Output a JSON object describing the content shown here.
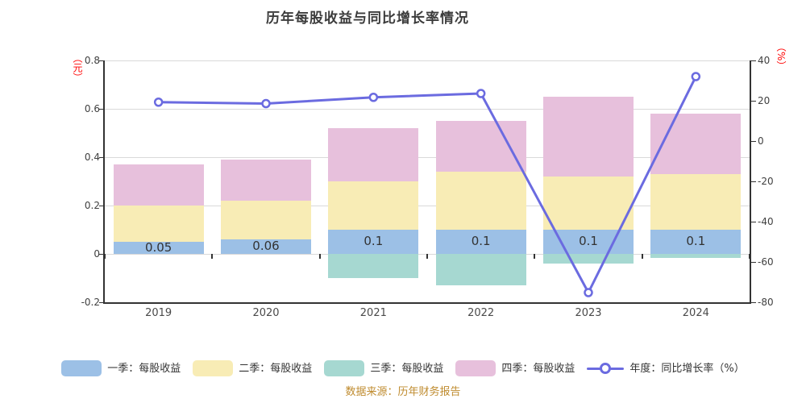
{
  "title": "历年每股收益与同比增长率情况",
  "axes": {
    "left_unit": "（元）",
    "right_unit": "（%）"
  },
  "source_note": "数据来源：历年财务报告",
  "colors": {
    "accent_line": "#6b6be0",
    "axis": "#333333",
    "grid": "#d9d9d9",
    "unit_label": "#ff0000",
    "source_text": "#bf8b2e"
  },
  "chart_data": {
    "type": "bar",
    "title": "历年每股收益与同比增长率情况",
    "categories": [
      "2019",
      "2020",
      "2021",
      "2022",
      "2023",
      "2024"
    ],
    "series": [
      {
        "name": "一季：每股收益",
        "type": "bar",
        "color": "#9cc0e6",
        "values": [
          0.05,
          0.06,
          0.1,
          0.1,
          0.1,
          0.1
        ],
        "labels": [
          "0.05",
          "0.06",
          "0.1",
          "0.1",
          "0.1",
          "0.1"
        ]
      },
      {
        "name": "二季：每股收益",
        "type": "bar",
        "color": "#f8ecb5",
        "values": [
          0.15,
          0.16,
          0.2,
          0.24,
          0.22,
          0.23
        ]
      },
      {
        "name": "三季：每股收益",
        "type": "bar",
        "color": "#a6d8d1",
        "values": [
          0,
          0,
          -0.1,
          -0.13,
          -0.04,
          -0.015
        ]
      },
      {
        "name": "四季：每股收益",
        "type": "bar",
        "color": "#e7c0dc",
        "values": [
          0.17,
          0.17,
          0.22,
          0.21,
          0.33,
          0.25
        ]
      },
      {
        "name": "年度：同比增长率（%）",
        "type": "line",
        "color": "#6b6be0",
        "axis": "right",
        "values": [
          19.3,
          18.6,
          21.7,
          23.6,
          -75.2,
          32.0
        ]
      }
    ],
    "left_axis": {
      "ticks": [
        "0.8",
        "0.6",
        "0.4",
        "0.2",
        "0",
        "-0.2"
      ],
      "max": 0.8,
      "min": -0.2
    },
    "right_axis": {
      "ticks": [
        "40",
        "20",
        "0",
        "-20",
        "-40",
        "-60",
        "-80"
      ],
      "max": 40,
      "min": -80
    },
    "legend_position": "bottom",
    "grid": true
  }
}
